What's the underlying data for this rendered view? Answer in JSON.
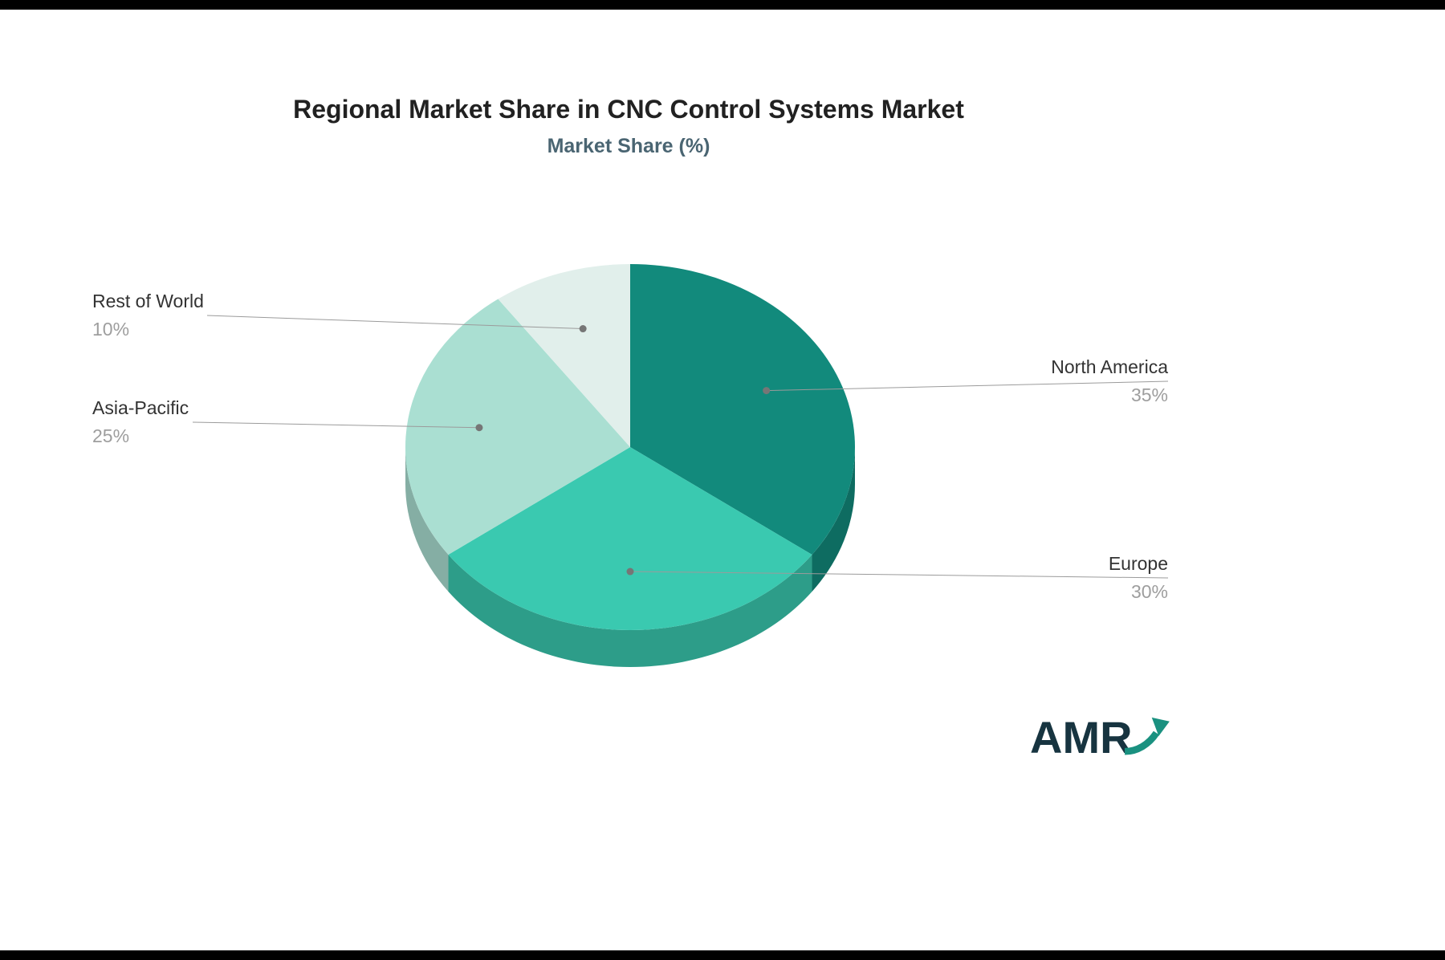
{
  "title": "Regional Market Share in CNC Control Systems Market",
  "subtitle": "Market Share (%)",
  "logo": {
    "text": "AMR"
  },
  "chart_data": {
    "type": "pie",
    "style": "3d-pie",
    "title": "Regional Market Share in CNC Control Systems Market",
    "subtitle": "Market Share (%)",
    "labels": [
      "North America",
      "Europe",
      "Asia-Pacific",
      "Rest of World"
    ],
    "values": [
      35,
      30,
      25,
      10
    ],
    "unit": "%",
    "colors": [
      "#128a7c",
      "#3ac9b0",
      "#aadfd2",
      "#e1efeb"
    ],
    "start_angle": 0,
    "direction": "clockwise",
    "label_text_color": "#333333",
    "value_text_color": "#9e9e9e",
    "leader_line_color": "#9b9b9b",
    "accent_color": "#1a9180"
  },
  "callouts": [
    {
      "label": "North America",
      "value": "35%",
      "side": "right"
    },
    {
      "label": "Europe",
      "value": "30%",
      "side": "right"
    },
    {
      "label": "Asia-Pacific",
      "value": "25%",
      "side": "left"
    },
    {
      "label": "Rest of World",
      "value": "10%",
      "side": "left"
    }
  ]
}
